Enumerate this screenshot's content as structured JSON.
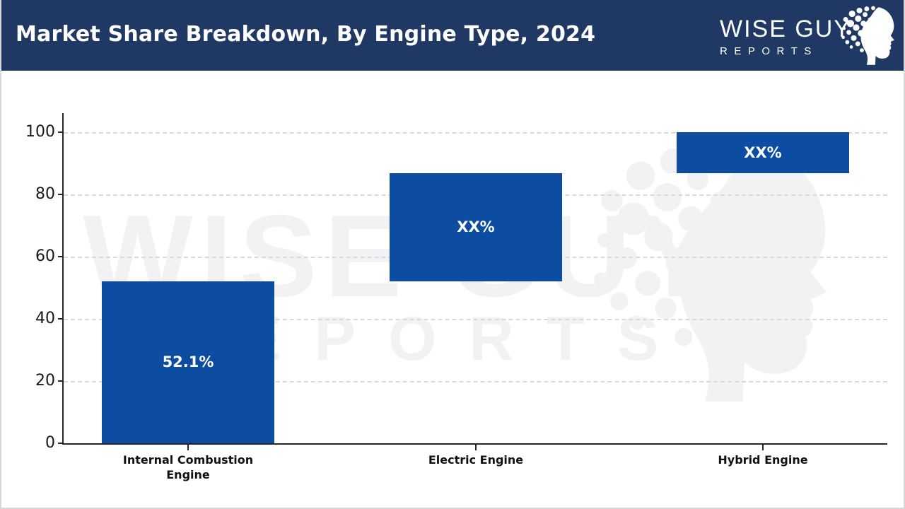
{
  "header": {
    "title": "Market Share Breakdown, By Engine Type, 2024",
    "logo": {
      "line1": "WISE GUY",
      "line2": "REPORTS"
    }
  },
  "watermark": {
    "line1": "WISE GUY",
    "line2": "REPORTS"
  },
  "chart_data": {
    "type": "bar",
    "variant": "floating-waterfall",
    "title": "Market Share Breakdown, By Engine Type, 2024",
    "categories": [
      "Internal Combustion Engine",
      "Electric Engine",
      "Hybrid Engine"
    ],
    "segments": [
      {
        "category": "Internal Combustion Engine",
        "label": "52.1%",
        "start": 0,
        "end": 52.1
      },
      {
        "category": "Electric Engine",
        "label": "XX%",
        "start": 52.1,
        "end": 86.8
      },
      {
        "category": "Hybrid Engine",
        "label": "XX%",
        "start": 86.8,
        "end": 100
      }
    ],
    "y_ticks": [
      0,
      20,
      40,
      60,
      80,
      100
    ],
    "ylim": [
      0,
      106
    ],
    "grid": "horizontal-dashed",
    "legend": "none",
    "bar_color": "#0c4da2",
    "bar_label_color": "#ffffff",
    "grid_color": "#d9d9d9",
    "axis_color": "#262626",
    "header_color": "#203864"
  }
}
